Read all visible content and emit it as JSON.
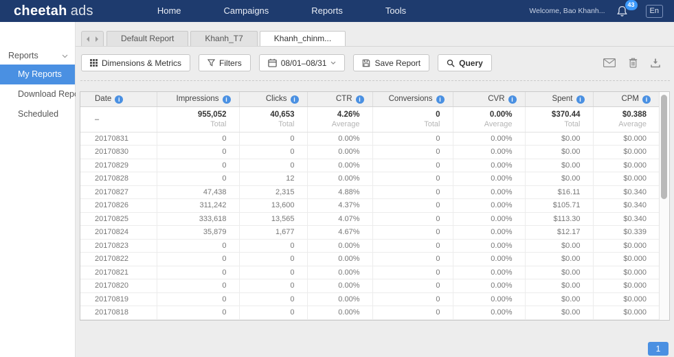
{
  "topnav": {
    "logo": {
      "brand": "cheetah",
      "suffix": "ads"
    },
    "items": [
      {
        "label": "Home"
      },
      {
        "label": "Campaigns"
      },
      {
        "label": "Reports"
      },
      {
        "label": "Tools"
      }
    ],
    "welcome": "Welcome,  Bao Khanh...",
    "notification_count": "43",
    "language": "En"
  },
  "sidebar": {
    "section": {
      "label": "Reports"
    },
    "items": [
      {
        "label": "My Reports",
        "active": true
      },
      {
        "label": "Download Report",
        "active": false
      },
      {
        "label": "Scheduled",
        "active": false
      }
    ]
  },
  "tabs": [
    {
      "label": "Default Report",
      "active": false
    },
    {
      "label": "Khanh_T7",
      "active": false
    },
    {
      "label": "Khanh_chinm...",
      "active": true
    }
  ],
  "toolbar": {
    "dimensions_metrics": "Dimensions & Metrics",
    "filters": "Filters",
    "date_range": "08/01–08/31",
    "save_report": "Save Report",
    "query": "Query"
  },
  "table": {
    "columns": [
      "Date",
      "Impressions",
      "Clicks",
      "CTR",
      "Conversions",
      "CVR",
      "Spent",
      "CPM"
    ],
    "total_row": {
      "date": "–",
      "cells": [
        {
          "value": "955,052",
          "sub": "Total"
        },
        {
          "value": "40,653",
          "sub": "Total"
        },
        {
          "value": "4.26%",
          "sub": "Average"
        },
        {
          "value": "0",
          "sub": "Total"
        },
        {
          "value": "0.00%",
          "sub": "Average"
        },
        {
          "value": "$370.44",
          "sub": "Total"
        },
        {
          "value": "$0.388",
          "sub": "Average"
        }
      ]
    },
    "rows": [
      [
        "20170831",
        "0",
        "0",
        "0.00%",
        "0",
        "0.00%",
        "$0.00",
        "$0.000"
      ],
      [
        "20170830",
        "0",
        "0",
        "0.00%",
        "0",
        "0.00%",
        "$0.00",
        "$0.000"
      ],
      [
        "20170829",
        "0",
        "0",
        "0.00%",
        "0",
        "0.00%",
        "$0.00",
        "$0.000"
      ],
      [
        "20170828",
        "0",
        "12",
        "0.00%",
        "0",
        "0.00%",
        "$0.00",
        "$0.000"
      ],
      [
        "20170827",
        "47,438",
        "2,315",
        "4.88%",
        "0",
        "0.00%",
        "$16.11",
        "$0.340"
      ],
      [
        "20170826",
        "311,242",
        "13,600",
        "4.37%",
        "0",
        "0.00%",
        "$105.71",
        "$0.340"
      ],
      [
        "20170825",
        "333,618",
        "13,565",
        "4.07%",
        "0",
        "0.00%",
        "$113.30",
        "$0.340"
      ],
      [
        "20170824",
        "35,879",
        "1,677",
        "4.67%",
        "0",
        "0.00%",
        "$12.17",
        "$0.339"
      ],
      [
        "20170823",
        "0",
        "0",
        "0.00%",
        "0",
        "0.00%",
        "$0.00",
        "$0.000"
      ],
      [
        "20170822",
        "0",
        "0",
        "0.00%",
        "0",
        "0.00%",
        "$0.00",
        "$0.000"
      ],
      [
        "20170821",
        "0",
        "0",
        "0.00%",
        "0",
        "0.00%",
        "$0.00",
        "$0.000"
      ],
      [
        "20170820",
        "0",
        "0",
        "0.00%",
        "0",
        "0.00%",
        "$0.00",
        "$0.000"
      ],
      [
        "20170819",
        "0",
        "0",
        "0.00%",
        "0",
        "0.00%",
        "$0.00",
        "$0.000"
      ],
      [
        "20170818",
        "0",
        "0",
        "0.00%",
        "0",
        "0.00%",
        "$0.00",
        "$0.000"
      ]
    ]
  },
  "pagination": {
    "current_page": "1"
  },
  "colors": {
    "navbar": "#1e3b6e",
    "accent": "#4a90e2",
    "badge": "#3b99fc"
  }
}
